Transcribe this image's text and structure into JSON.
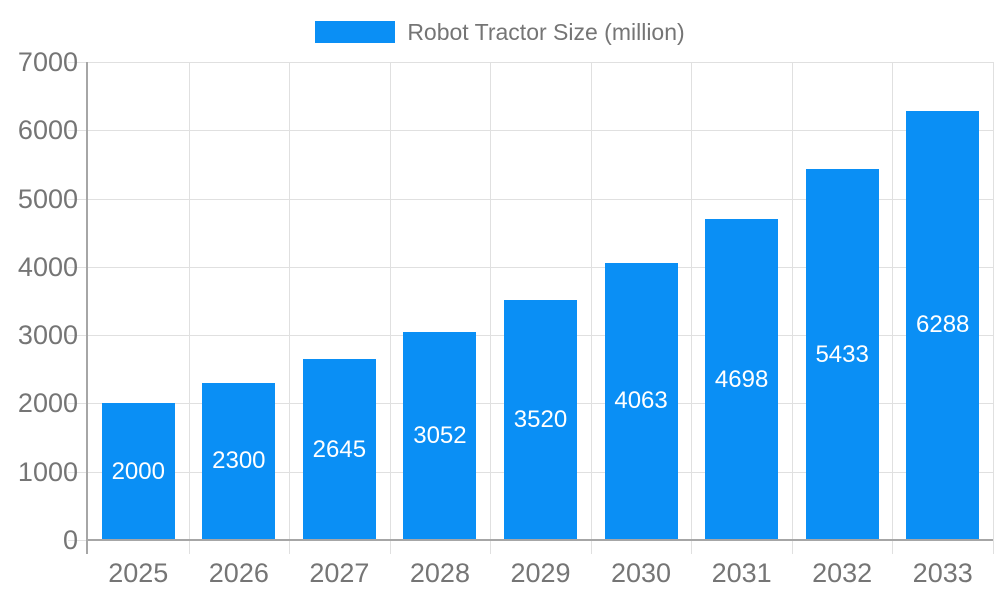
{
  "chart_data": {
    "type": "bar",
    "title": "Robot Tractor Size (million)",
    "legend": {
      "position": "top-center",
      "label": "Robot Tractor Size (million)"
    },
    "categories": [
      "2025",
      "2026",
      "2027",
      "2028",
      "2029",
      "2030",
      "2031",
      "2032",
      "2033"
    ],
    "values": [
      2000,
      2300,
      2645,
      3052,
      3520,
      4063,
      4698,
      5433,
      6288
    ],
    "bar_value_labels": [
      "2000",
      "2300",
      "2645",
      "3052",
      "3520",
      "4063",
      "4698",
      "5433",
      "6288"
    ],
    "xlabel": "",
    "ylabel": "",
    "ylim": [
      0,
      7000
    ],
    "yticks": [
      0,
      1000,
      2000,
      3000,
      4000,
      5000,
      6000,
      7000
    ],
    "grid": {
      "horizontal": true,
      "vertical_category_boundaries": true
    },
    "colors": {
      "bar": "#0a8ff5",
      "bar_value_text": "#ffffff",
      "axis_text": "#757575",
      "legend_text": "#757575",
      "gridline": "#e0e0e0",
      "axis_line": "#a6a6a6",
      "background": "#ffffff"
    }
  }
}
